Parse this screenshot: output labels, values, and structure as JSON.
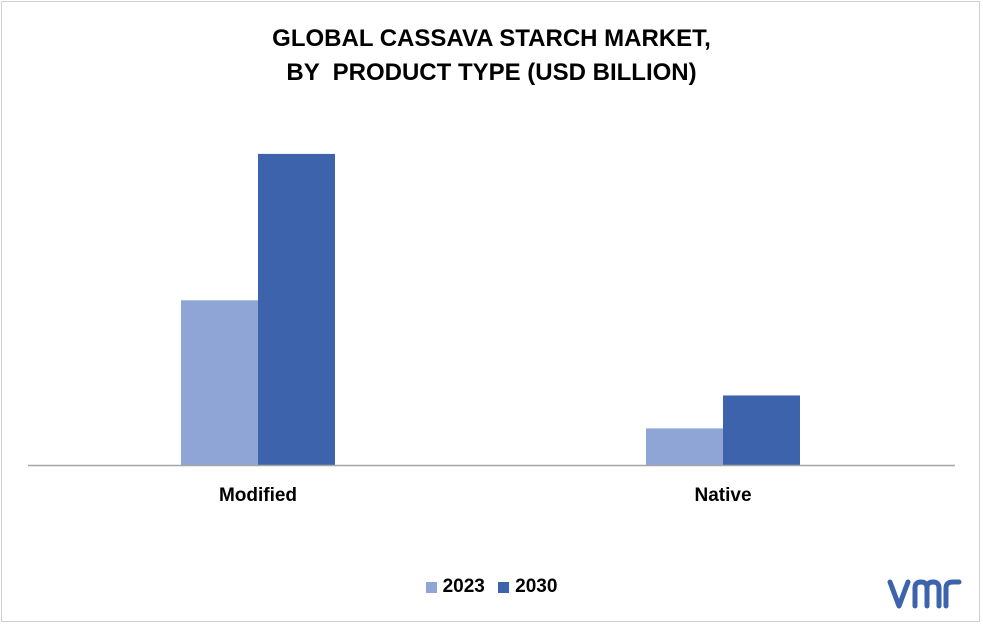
{
  "chart_data": {
    "type": "bar",
    "title_lines": [
      "GLOBAL CASSAVA STARCH MARKET,",
      "BY  PRODUCT TYPE (USD BILLION)"
    ],
    "categories": [
      "Modified",
      "Native"
    ],
    "series": [
      {
        "name": "2023",
        "values": [
          4.5,
          1.0
        ],
        "color": "#8fa5d6"
      },
      {
        "name": "2030",
        "values": [
          8.5,
          1.9
        ],
        "color": "#3d63ad"
      }
    ],
    "ylim": [
      0,
      10
    ],
    "grid": false,
    "legend_position": "bottom",
    "axis_color": "#a6a6a6"
  },
  "branding": {
    "logo_icon": "vmr-logo-icon",
    "logo_color": "#3d63ad"
  }
}
